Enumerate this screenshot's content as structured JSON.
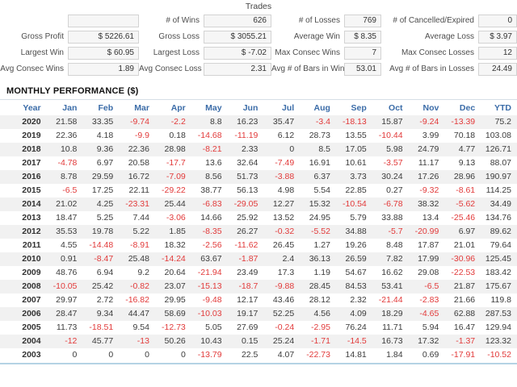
{
  "trades": {
    "title": "Trades",
    "rows": [
      [
        {
          "label": "",
          "value": ""
        },
        {
          "label": "# of Wins",
          "value": "626"
        },
        {
          "label": "# of Losses",
          "value": "769"
        },
        {
          "label": "# of Cancelled/Expired",
          "value": "0"
        }
      ],
      [
        {
          "label": "Gross Profit",
          "value": "$ 5226.61"
        },
        {
          "label": "Gross Loss",
          "value": "$ 3055.21"
        },
        {
          "label": "Average Win",
          "value": "$ 8.35"
        },
        {
          "label": "Average Loss",
          "value": "$ 3.97"
        }
      ],
      [
        {
          "label": "Largest Win",
          "value": "$ 60.95"
        },
        {
          "label": "Largest Loss",
          "value": "$ -7.02"
        },
        {
          "label": "Max Consec Wins",
          "value": "7"
        },
        {
          "label": "Max Consec Losses",
          "value": "12"
        }
      ],
      [
        {
          "label": "Avg Consec Wins",
          "value": "1.89"
        },
        {
          "label": "Avg Consec Loss",
          "value": "2.31"
        },
        {
          "label": "Avg # of Bars in Wins",
          "value": "53.01"
        },
        {
          "label": "Avg # of Bars in Losses",
          "value": "24.49"
        }
      ]
    ]
  },
  "monthly": {
    "title": "MONTHLY PERFORMANCE ($)",
    "columns": [
      "Year",
      "Jan",
      "Feb",
      "Mar",
      "Apr",
      "May",
      "Jun",
      "Jul",
      "Aug",
      "Sep",
      "Oct",
      "Nov",
      "Dec",
      "YTD"
    ],
    "rows": [
      {
        "year": "2020",
        "values": [
          "21.58",
          "33.35",
          "-9.74",
          "-2.2",
          "8.8",
          "16.23",
          "35.47",
          "-3.4",
          "-18.13",
          "15.87",
          "-9.24",
          "-13.39",
          "75.2"
        ]
      },
      {
        "year": "2019",
        "values": [
          "22.36",
          "4.18",
          "-9.9",
          "0.18",
          "-14.68",
          "-11.19",
          "6.12",
          "28.73",
          "13.55",
          "-10.44",
          "3.99",
          "70.18",
          "103.08"
        ]
      },
      {
        "year": "2018",
        "values": [
          "10.8",
          "9.36",
          "22.36",
          "28.98",
          "-8.21",
          "2.33",
          "0",
          "8.5",
          "17.05",
          "5.98",
          "24.79",
          "4.77",
          "126.71"
        ]
      },
      {
        "year": "2017",
        "values": [
          "-4.78",
          "6.97",
          "20.58",
          "-17.7",
          "13.6",
          "32.64",
          "-7.49",
          "16.91",
          "10.61",
          "-3.57",
          "11.17",
          "9.13",
          "88.07"
        ]
      },
      {
        "year": "2016",
        "values": [
          "8.78",
          "29.59",
          "16.72",
          "-7.09",
          "8.56",
          "51.73",
          "-3.88",
          "6.37",
          "3.73",
          "30.24",
          "17.26",
          "28.96",
          "190.97"
        ]
      },
      {
        "year": "2015",
        "values": [
          "-6.5",
          "17.25",
          "22.11",
          "-29.22",
          "38.77",
          "56.13",
          "4.98",
          "5.54",
          "22.85",
          "0.27",
          "-9.32",
          "-8.61",
          "114.25"
        ]
      },
      {
        "year": "2014",
        "values": [
          "21.02",
          "4.25",
          "-23.31",
          "25.44",
          "-6.83",
          "-29.05",
          "12.27",
          "15.32",
          "-10.54",
          "-6.78",
          "38.32",
          "-5.62",
          "34.49"
        ]
      },
      {
        "year": "2013",
        "values": [
          "18.47",
          "5.25",
          "7.44",
          "-3.06",
          "14.66",
          "25.92",
          "13.52",
          "24.95",
          "5.79",
          "33.88",
          "13.4",
          "-25.46",
          "134.76"
        ]
      },
      {
        "year": "2012",
        "values": [
          "35.53",
          "19.78",
          "5.22",
          "1.85",
          "-8.35",
          "26.27",
          "-0.32",
          "-5.52",
          "34.88",
          "-5.7",
          "-20.99",
          "6.97",
          "89.62"
        ]
      },
      {
        "year": "2011",
        "values": [
          "4.55",
          "-14.48",
          "-8.91",
          "18.32",
          "-2.56",
          "-11.62",
          "26.45",
          "1.27",
          "19.26",
          "8.48",
          "17.87",
          "21.01",
          "79.64"
        ]
      },
      {
        "year": "2010",
        "values": [
          "0.91",
          "-8.47",
          "25.48",
          "-14.24",
          "63.67",
          "-1.87",
          "2.4",
          "36.13",
          "26.59",
          "7.82",
          "17.99",
          "-30.96",
          "125.45"
        ]
      },
      {
        "year": "2009",
        "values": [
          "48.76",
          "6.94",
          "9.2",
          "20.64",
          "-21.94",
          "23.49",
          "17.3",
          "1.19",
          "54.67",
          "16.62",
          "29.08",
          "-22.53",
          "183.42"
        ]
      },
      {
        "year": "2008",
        "values": [
          "-10.05",
          "25.42",
          "-0.82",
          "23.07",
          "-15.13",
          "-18.7",
          "-9.88",
          "28.45",
          "84.53",
          "53.41",
          "-6.5",
          "21.87",
          "175.67"
        ]
      },
      {
        "year": "2007",
        "values": [
          "29.97",
          "2.72",
          "-16.82",
          "29.95",
          "-9.48",
          "12.17",
          "43.46",
          "28.12",
          "2.32",
          "-21.44",
          "-2.83",
          "21.66",
          "119.8"
        ]
      },
      {
        "year": "2006",
        "values": [
          "28.47",
          "9.34",
          "44.47",
          "58.69",
          "-10.03",
          "19.17",
          "52.25",
          "4.56",
          "4.09",
          "18.29",
          "-4.65",
          "62.88",
          "287.53"
        ]
      },
      {
        "year": "2005",
        "values": [
          "11.73",
          "-18.51",
          "9.54",
          "-12.73",
          "5.05",
          "27.69",
          "-0.24",
          "-2.95",
          "76.24",
          "11.71",
          "5.94",
          "16.47",
          "129.94"
        ]
      },
      {
        "year": "2004",
        "values": [
          "-12",
          "45.77",
          "-13",
          "50.26",
          "10.43",
          "0.15",
          "25.24",
          "-1.71",
          "-14.5",
          "16.73",
          "17.32",
          "-1.37",
          "123.32"
        ]
      },
      {
        "year": "2003",
        "values": [
          "0",
          "0",
          "0",
          "0",
          "-13.79",
          "22.5",
          "4.07",
          "-22.73",
          "14.81",
          "1.84",
          "0.69",
          "-17.91",
          "-10.52"
        ]
      }
    ]
  },
  "colors": {
    "header_blue": "#3b6ca8",
    "negative_red": "#e23a3a",
    "positive_dark": "#3c3c3c",
    "stripe_gray": "#f1f1f1",
    "box_background": "#f6f6f6",
    "box_border": "#d3d3d3",
    "bottom_rule_blue": "#b4d3e4"
  }
}
